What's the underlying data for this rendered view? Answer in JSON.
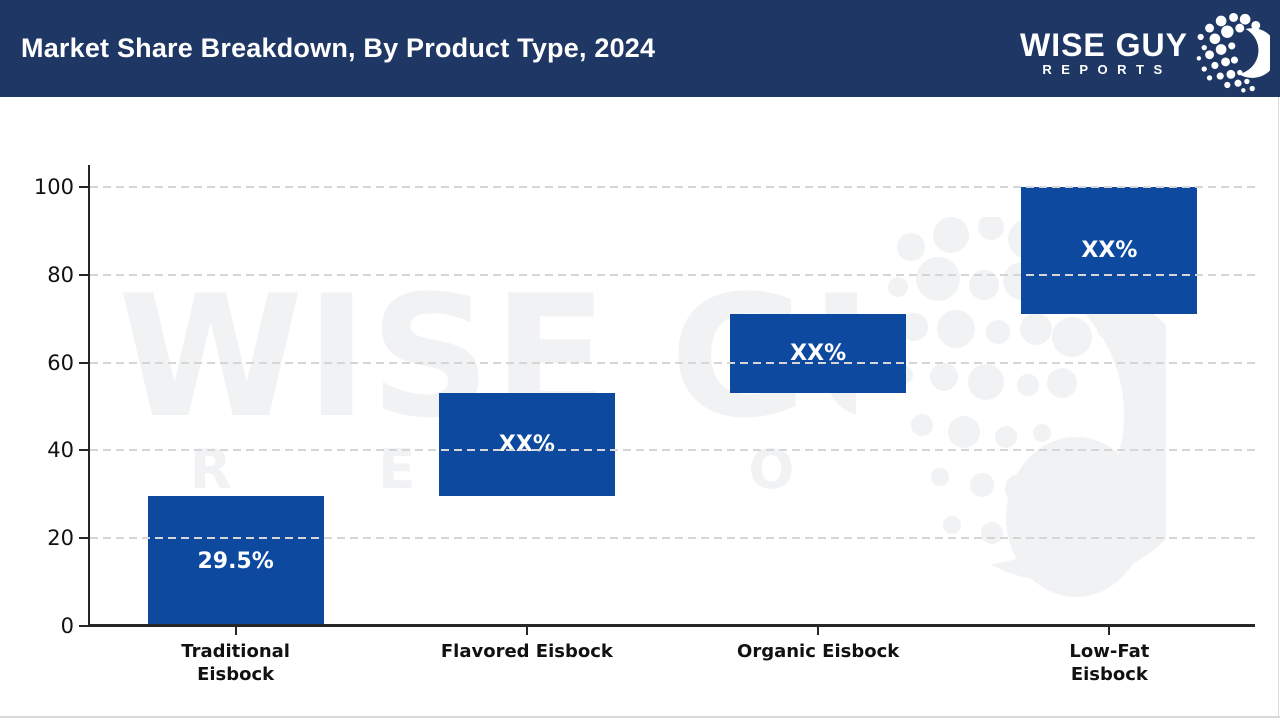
{
  "header": {
    "title": "Market Share Breakdown, By Product Type, 2024",
    "bg_color": "#1f3765",
    "logo": {
      "line1": "WISE GUY",
      "line2": "REPORTS"
    }
  },
  "watermark": {
    "line1": "WISE GUY",
    "line2": "R E P O R T S"
  },
  "chart_data": {
    "type": "bar",
    "subtype": "waterfall-floating-bars",
    "title": "Market Share Breakdown, By Product Type, 2024",
    "xlabel": "",
    "ylabel": "",
    "categories": [
      "Traditional\nEisbock",
      "Flavored Eisbock",
      "Organic Eisbock",
      "Low-Fat Eisbock"
    ],
    "bars": [
      {
        "category": "Traditional Eisbock",
        "start": 0,
        "end": 29.5,
        "label": "29.5%"
      },
      {
        "category": "Flavored Eisbock",
        "start": 29.5,
        "end": 53,
        "label": "XX%"
      },
      {
        "category": "Organic Eisbock",
        "start": 53,
        "end": 71,
        "label": "XX%"
      },
      {
        "category": "Low-Fat Eisbock",
        "start": 71,
        "end": 100,
        "label": "XX%"
      }
    ],
    "y_ticks": [
      0,
      20,
      40,
      60,
      80,
      100
    ],
    "ylim": [
      0,
      105
    ],
    "grid": "dashed-horizontal",
    "legend": "none",
    "bar_color": "#0d4a9f",
    "grid_color": "#d6d6d6",
    "axis_color": "#262626"
  }
}
